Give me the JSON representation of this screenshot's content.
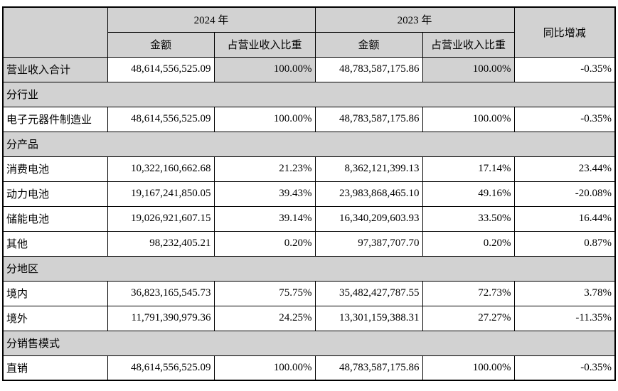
{
  "table": {
    "title_semantic": "营业收入构成表",
    "header": {
      "year_2024": "2024 年",
      "year_2023": "2023 年",
      "amount": "金额",
      "ratio": "占营业收入比重",
      "yoy": "同比增减"
    },
    "rows": [
      {
        "type": "data",
        "cells": {
          "label": "营业收入合计",
          "amt2024": "48,614,556,525.09",
          "pct2024": "100.00%",
          "amt2023": "48,783,587,175.86",
          "pct2023": "100.00%",
          "yoy": "-0.35%"
        },
        "gray": [
          "label",
          "pct2024",
          "pct2023"
        ]
      },
      {
        "type": "section",
        "label": "分行业"
      },
      {
        "type": "data",
        "cells": {
          "label": "电子元器件制造业",
          "amt2024": "48,614,556,525.09",
          "pct2024": "100.00%",
          "amt2023": "48,783,587,175.86",
          "pct2023": "100.00%",
          "yoy": "-0.35%"
        },
        "gray": []
      },
      {
        "type": "section",
        "label": "分产品"
      },
      {
        "type": "data",
        "cells": {
          "label": "消费电池",
          "amt2024": "10,322,160,662.68",
          "pct2024": "21.23%",
          "amt2023": "8,362,121,399.13",
          "pct2023": "17.14%",
          "yoy": "23.44%"
        },
        "gray": []
      },
      {
        "type": "data",
        "cells": {
          "label": "动力电池",
          "amt2024": "19,167,241,850.05",
          "pct2024": "39.43%",
          "amt2023": "23,983,868,465.10",
          "pct2023": "49.16%",
          "yoy": "-20.08%"
        },
        "gray": []
      },
      {
        "type": "data",
        "cells": {
          "label": "储能电池",
          "amt2024": "19,026,921,607.15",
          "pct2024": "39.14%",
          "amt2023": "16,340,209,603.93",
          "pct2023": "33.50%",
          "yoy": "16.44%"
        },
        "gray": []
      },
      {
        "type": "data",
        "cells": {
          "label": "其他",
          "amt2024": "98,232,405.21",
          "pct2024": "0.20%",
          "amt2023": "97,387,707.70",
          "pct2023": "0.20%",
          "yoy": "0.87%"
        },
        "gray": []
      },
      {
        "type": "section",
        "label": "分地区"
      },
      {
        "type": "data",
        "cells": {
          "label": "境内",
          "amt2024": "36,823,165,545.73",
          "pct2024": "75.75%",
          "amt2023": "35,482,427,787.55",
          "pct2023": "72.73%",
          "yoy": "3.78%"
        },
        "gray": []
      },
      {
        "type": "data",
        "cells": {
          "label": "境外",
          "amt2024": "11,791,390,979.36",
          "pct2024": "24.25%",
          "amt2023": "13,301,159,388.31",
          "pct2023": "27.27%",
          "yoy": "-11.35%"
        },
        "gray": []
      },
      {
        "type": "section",
        "label": "分销售模式"
      },
      {
        "type": "data",
        "cells": {
          "label": "直销",
          "amt2024": "48,614,556,525.09",
          "pct2024": "100.00%",
          "amt2023": "48,783,587,175.86",
          "pct2023": "100.00%",
          "yoy": "-0.35%"
        },
        "gray": []
      }
    ],
    "colors": {
      "cell_shade": "#d2d2d2",
      "border": "#000000",
      "background": "#ffffff",
      "text": "#000000"
    }
  }
}
